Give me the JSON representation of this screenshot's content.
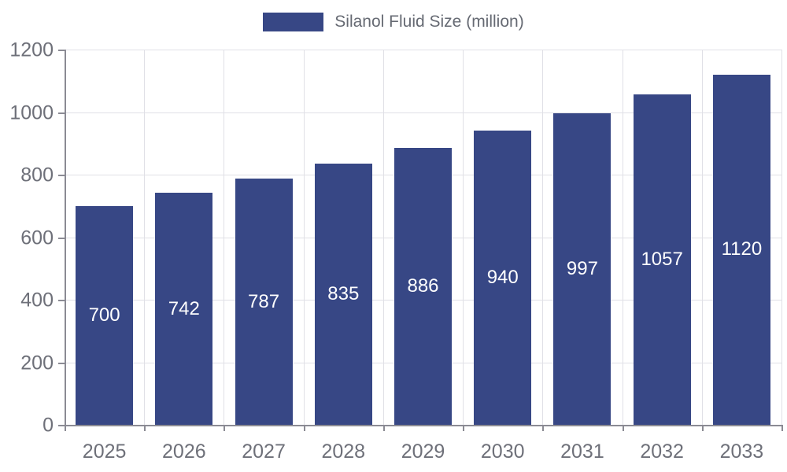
{
  "legend": {
    "label": "Silanol Fluid Size (million)"
  },
  "chart_data": {
    "type": "bar",
    "title": "",
    "xlabel": "",
    "ylabel": "",
    "categories": [
      "2025",
      "2026",
      "2027",
      "2028",
      "2029",
      "2030",
      "2031",
      "2032",
      "2033"
    ],
    "series": [
      {
        "name": "Silanol Fluid Size (million)",
        "values": [
          700,
          742,
          787,
          835,
          886,
          940,
          997,
          1057,
          1120
        ]
      }
    ],
    "value_labels": [
      "700",
      "742",
      "787",
      "835",
      "886",
      "940",
      "997",
      "1057",
      "1120"
    ],
    "ylim": [
      0,
      1200
    ],
    "yticks": [
      0,
      200,
      400,
      600,
      800,
      1000,
      1200
    ],
    "grid": true,
    "legend_position": "top-center",
    "colors": {
      "bar": "#374785",
      "value_label": "#ffffff",
      "axis_label": "#6e7079",
      "grid_line": "#e0e0e6",
      "axis_line": "#8b8b94",
      "legend_text": "#666a73",
      "background": "#ffffff"
    }
  }
}
